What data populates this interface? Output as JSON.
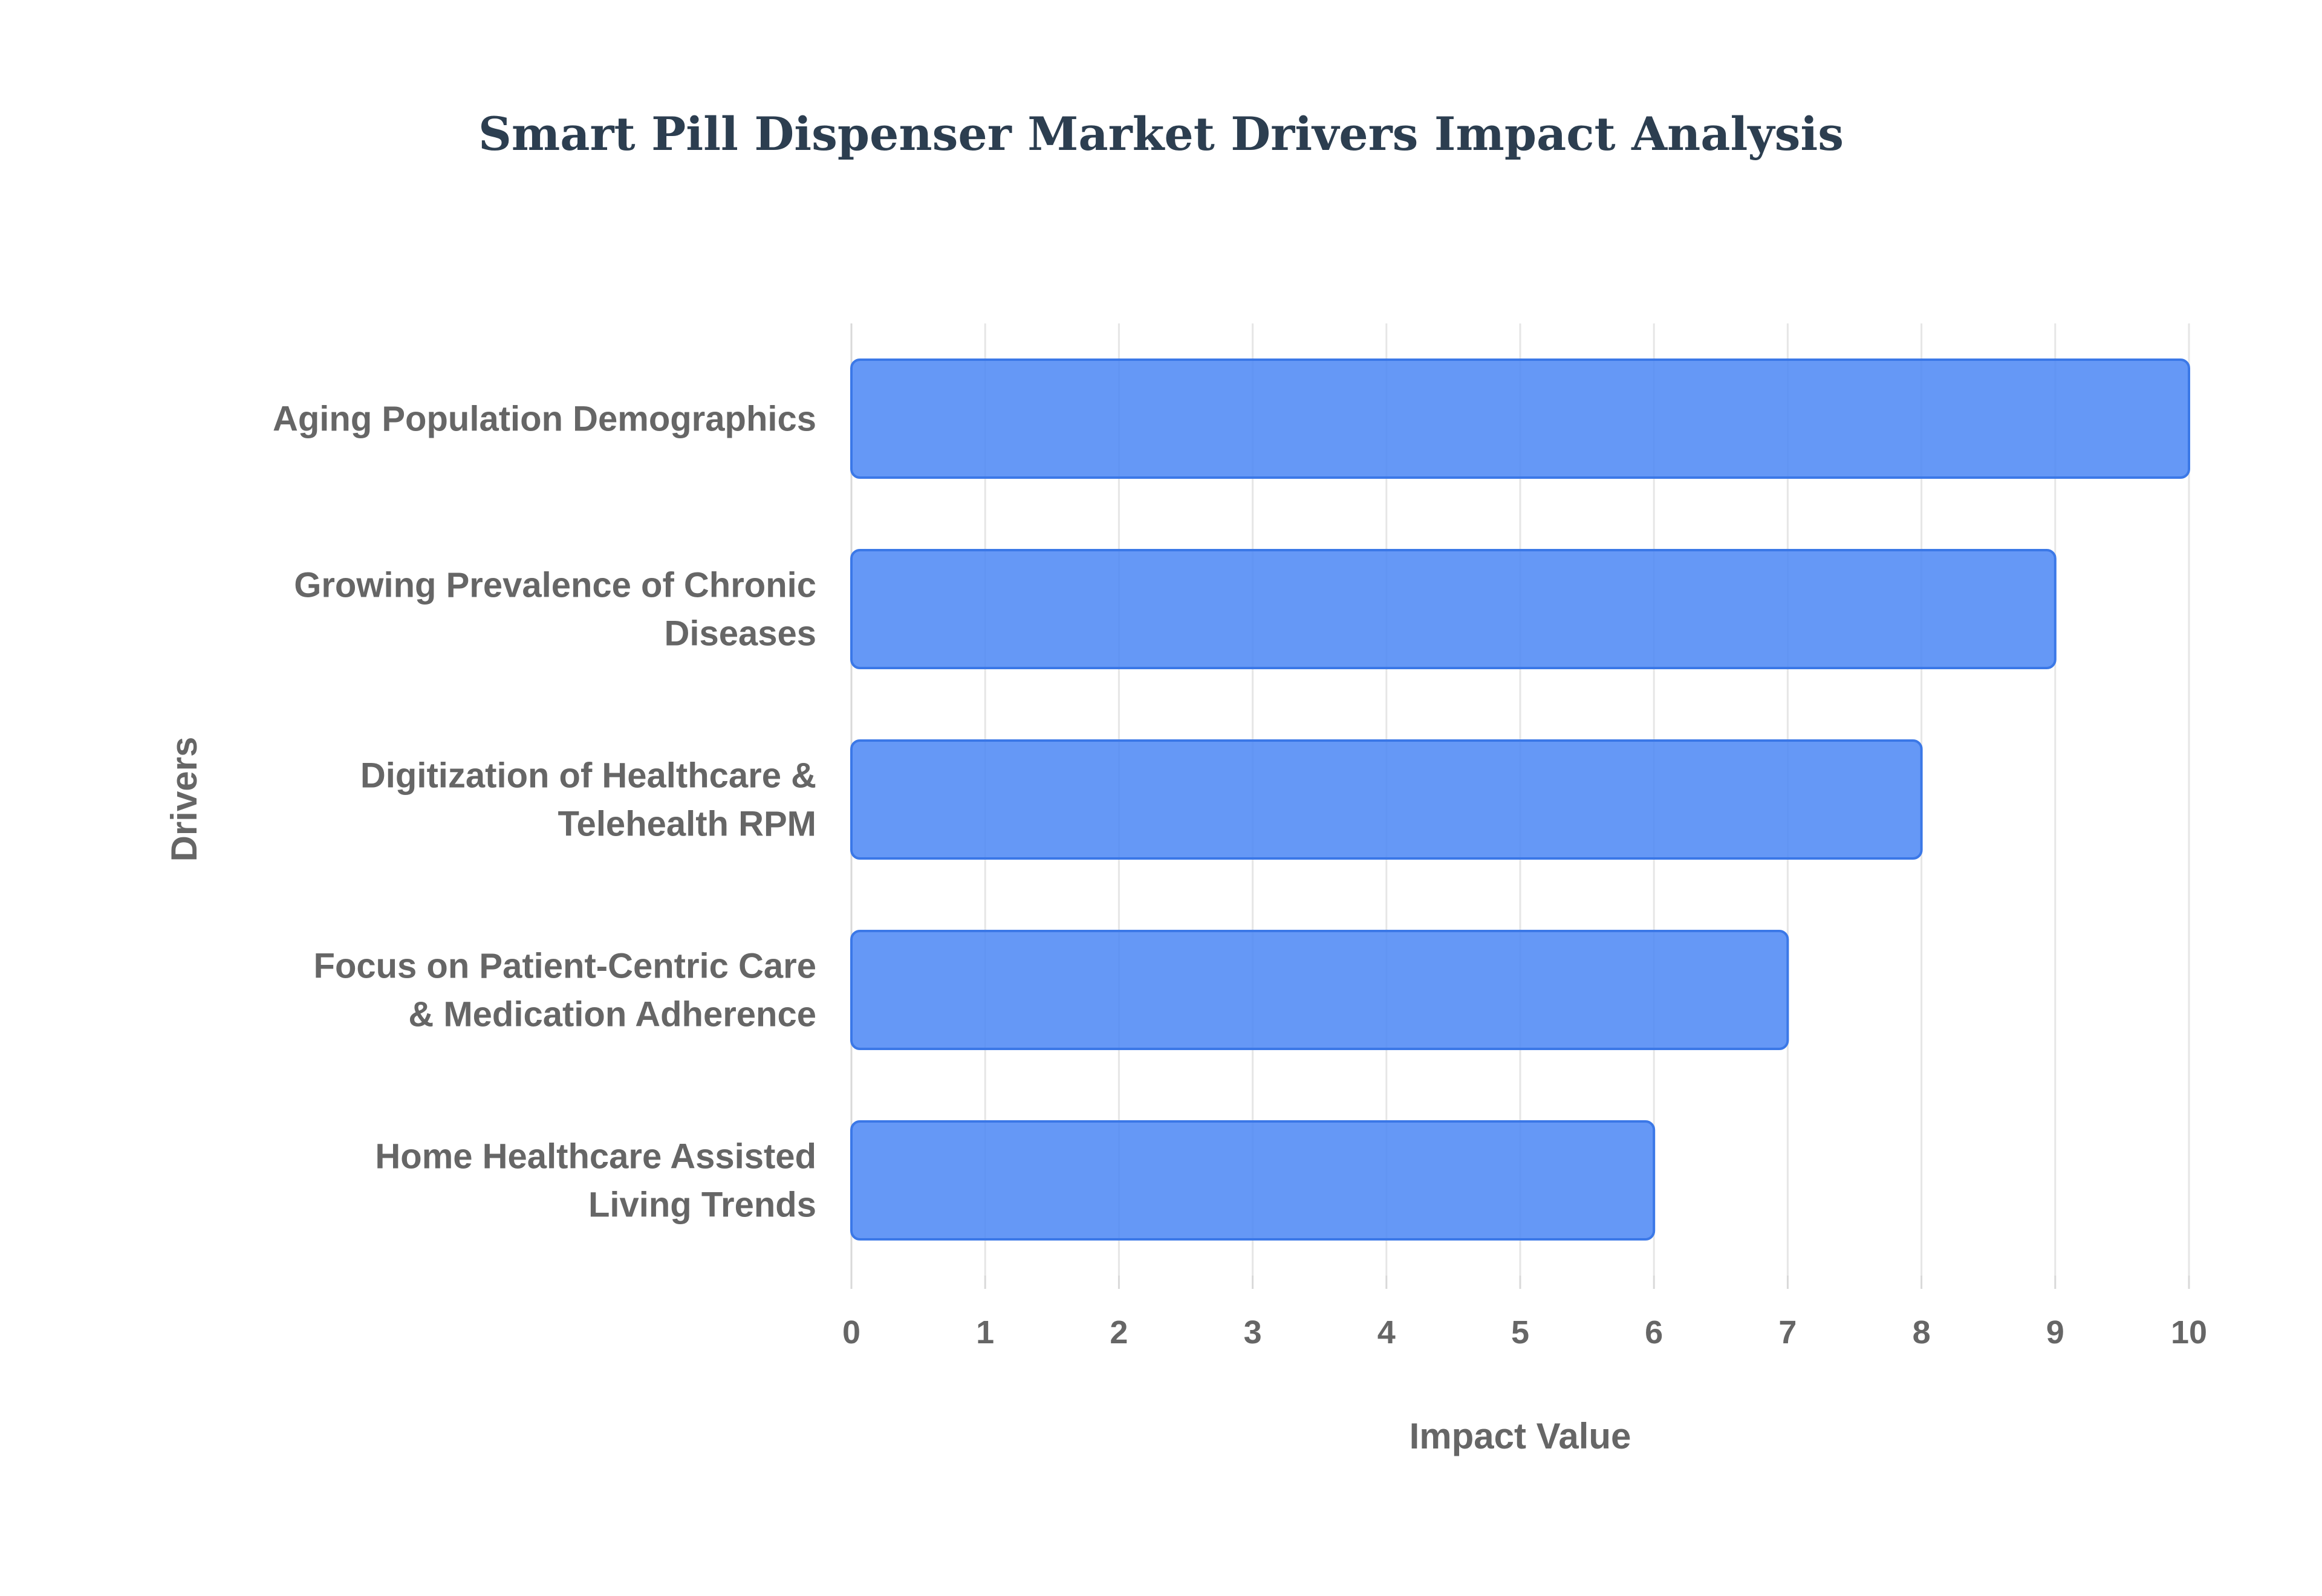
{
  "chart_data": {
    "type": "bar",
    "orientation": "horizontal",
    "title": "Smart Pill Dispenser Market Drivers Impact Analysis",
    "xlabel": "Impact Value",
    "ylabel": "Drivers",
    "xlim": [
      0,
      10
    ],
    "x_ticks": [
      "0",
      "1",
      "2",
      "3",
      "4",
      "5",
      "6",
      "7",
      "8",
      "9",
      "10"
    ],
    "grid": true,
    "legend": "none",
    "categories": [
      [
        "Aging Population Demographics"
      ],
      [
        "Growing Prevalence of Chronic",
        "Diseases"
      ],
      [
        "Digitization of Healthcare &",
        "Telehealth RPM"
      ],
      [
        "Focus on Patient-Centric Care",
        "& Medication Adherence"
      ],
      [
        "Home Healthcare Assisted",
        "Living Trends"
      ]
    ],
    "values": [
      10,
      9,
      8,
      7,
      6
    ],
    "colors": {
      "bar_fill": "#4a86f5",
      "bar_stroke": "#3b78e7",
      "grid": "#e6e6e6",
      "axis": "#d9d9d9"
    }
  }
}
